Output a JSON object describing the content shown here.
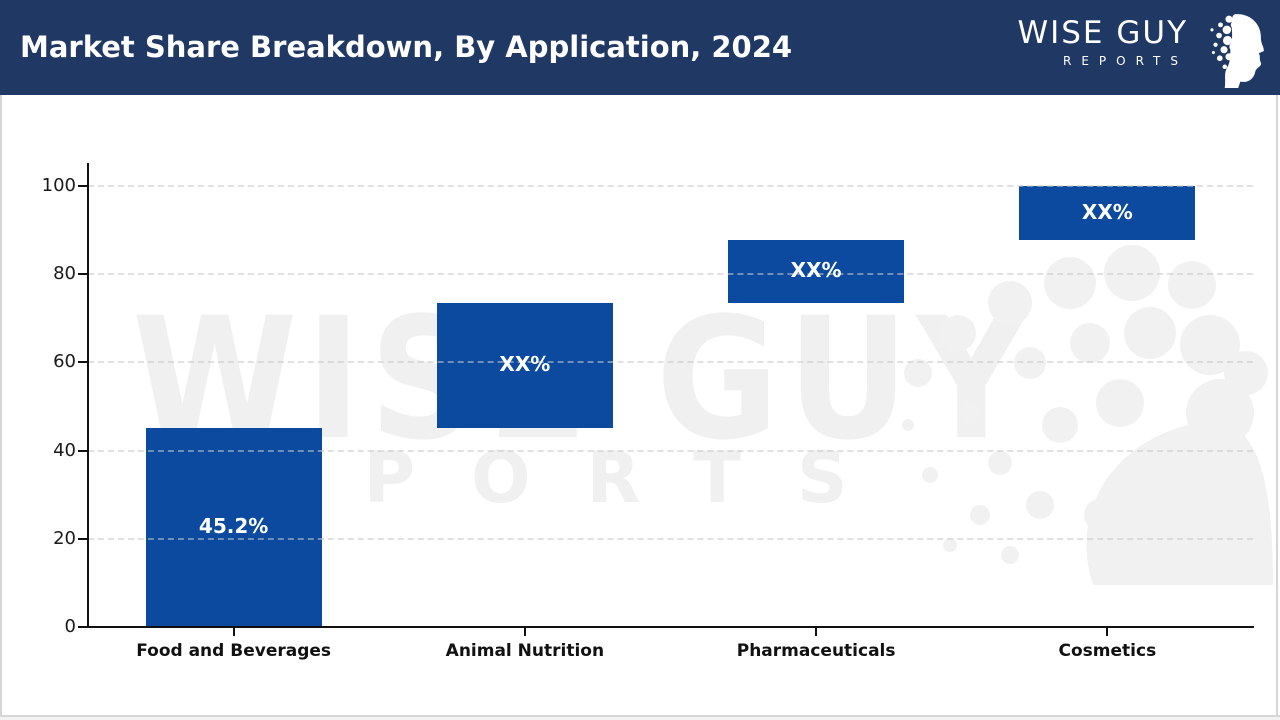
{
  "header": {
    "title": "Market Share Breakdown, By Application, 2024",
    "bg_color": "#1F3864",
    "logo": {
      "line1": "WISE GUY",
      "line2": "REPORTS"
    }
  },
  "watermark": {
    "line1": "WISE GUY",
    "line2": "REPORTS"
  },
  "chart_data": {
    "type": "bar",
    "subtype": "waterfall-floating-bars",
    "title": "Market Share Breakdown, By Application, 2024",
    "categories": [
      "Food and Beverages",
      "Animal Nutrition",
      "Pharmaceuticals",
      "Cosmetics"
    ],
    "segments": [
      {
        "category": "Food and Beverages",
        "start": 0,
        "end": 45.2,
        "label": "45.2%"
      },
      {
        "category": "Animal Nutrition",
        "start": 45.2,
        "end": 73.5,
        "label": "XX%"
      },
      {
        "category": "Pharmaceuticals",
        "start": 73.5,
        "end": 87.8,
        "label": "XX%"
      },
      {
        "category": "Cosmetics",
        "start": 87.8,
        "end": 100,
        "label": "XX%"
      }
    ],
    "xlabel": "",
    "ylabel": "",
    "yticks": [
      0,
      20,
      40,
      60,
      80,
      100
    ],
    "ylim": [
      0,
      105
    ],
    "grid": "horizontal-dashed",
    "legend": "none",
    "bar_color": "#0B4A9F",
    "bar_label_color": "#FFFFFF",
    "axis_color": "#111111",
    "gridline_color": "#DCDCDC"
  }
}
